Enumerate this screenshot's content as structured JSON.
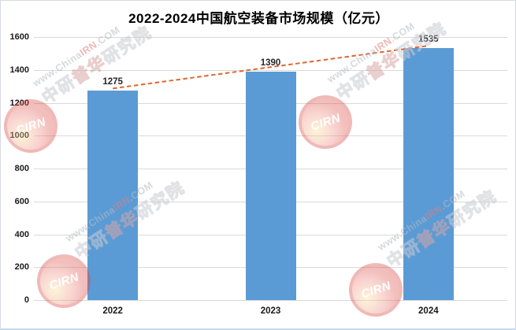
{
  "chart_data": {
    "type": "bar",
    "title": "2022-2024中国航空装备市场规模（亿元）",
    "categories": [
      "2022",
      "2023",
      "2024"
    ],
    "values": [
      1275,
      1390,
      1535
    ],
    "data_labels": [
      "1275",
      "1390",
      "1535"
    ],
    "xlabel": "",
    "ylabel": "",
    "ylim": [
      0,
      1600
    ],
    "yticks": [
      0,
      200,
      400,
      600,
      800,
      1000,
      1200,
      1400,
      1600
    ],
    "grid": true,
    "legend": "none",
    "bar_color": "#5B9BD5",
    "trendline": {
      "type": "linear",
      "style": "dashed",
      "color": "#E2652E"
    }
  },
  "watermark": {
    "logo_text": "CIRN",
    "line1_prefix": "www.China",
    "line1_highlight": "IRN",
    "line1_suffix": ".COM",
    "line2": "中研普华研究院"
  }
}
